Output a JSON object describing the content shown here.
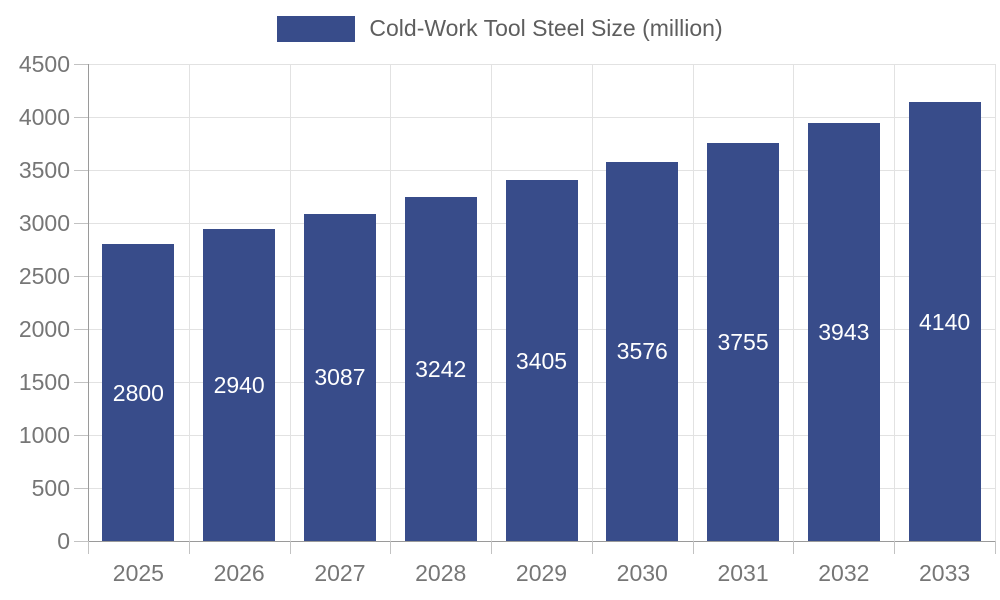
{
  "legend": {
    "label": "Cold-Work Tool Steel Size (million)"
  },
  "chart_data": {
    "type": "bar",
    "title": "Cold-Work Tool Steel Size (million)",
    "series_name": "Cold-Work Tool Steel Size (million)",
    "categories": [
      "2025",
      "2026",
      "2027",
      "2028",
      "2029",
      "2030",
      "2031",
      "2032",
      "2033"
    ],
    "values": [
      2800,
      2940,
      3087,
      3242,
      3405,
      3576,
      3755,
      3943,
      4140
    ],
    "value_labels": [
      "2800",
      "2940",
      "3087",
      "3242",
      "3405",
      "3576",
      "3755",
      "3943",
      "4140"
    ],
    "xlabel": "",
    "ylabel": "",
    "ylim": [
      0,
      4500
    ],
    "ytick_step": 500,
    "ytick_labels": [
      "0",
      "500",
      "1000",
      "1500",
      "2000",
      "2500",
      "3000",
      "3500",
      "4000",
      "4500"
    ],
    "grid": true,
    "legend_position": "top",
    "bar_color": "#384c8a",
    "bar_label_color": "#ffffff",
    "axis_label_color": "#767676",
    "gridline_color": "#e2e2e2",
    "axis_line_color": "#9a9a9a"
  }
}
